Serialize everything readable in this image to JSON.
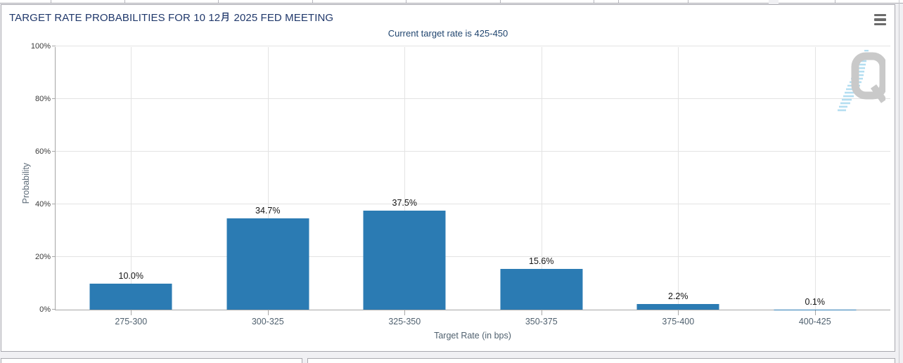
{
  "page": {
    "title_full": "TARGET RATE PROBABILITIES FOR 10 12月 2025 FED MEETING",
    "title_part1": "TARGET RATE PROBABILITIES FOR 10 12",
    "title_cjk_month": "月",
    "title_part2": " 2025 FED MEETING",
    "subtitle": "Current target rate is 425-450"
  },
  "icons": {
    "menu_icon": "hamburger-menu",
    "watermark_icon": "quikstrike-q-logo"
  },
  "colors": {
    "bar": "#2b7bb3",
    "title_text": "#20386b",
    "subtitle_text": "#1f446e",
    "axis_line": "#a6a6a6",
    "gridline": "#e3e3e3",
    "tick_label": "#50616f",
    "value_label": "#141414",
    "watermark_gray": "#c7c7c7",
    "watermark_blue": "#b0ddf1",
    "page_background": "#f0f0f3",
    "panel_background": "#ffffff"
  },
  "chart_data": {
    "type": "bar",
    "title": "TARGET RATE PROBABILITIES FOR 10 12月 2025 FED MEETING",
    "subtitle": "Current target rate is 425-450",
    "categories": [
      "275-300",
      "300-325",
      "325-350",
      "350-375",
      "375-400",
      "400-425"
    ],
    "values": [
      10.0,
      34.7,
      37.5,
      15.6,
      2.2,
      0.1
    ],
    "value_labels": [
      "10.0%",
      "34.7%",
      "37.5%",
      "15.6%",
      "2.2%",
      "0.1%"
    ],
    "xlabel": "Target Rate (in bps)",
    "ylabel": "Probability",
    "ylim": [
      0,
      100
    ],
    "y_ticks_percent": [
      0,
      20,
      40,
      60,
      80,
      100
    ],
    "y_tick_labels": [
      "0%",
      "20%",
      "40%",
      "60%",
      "80%",
      "100%"
    ],
    "grid": true,
    "legend": "none",
    "bar_color": "#2b7bb3"
  }
}
